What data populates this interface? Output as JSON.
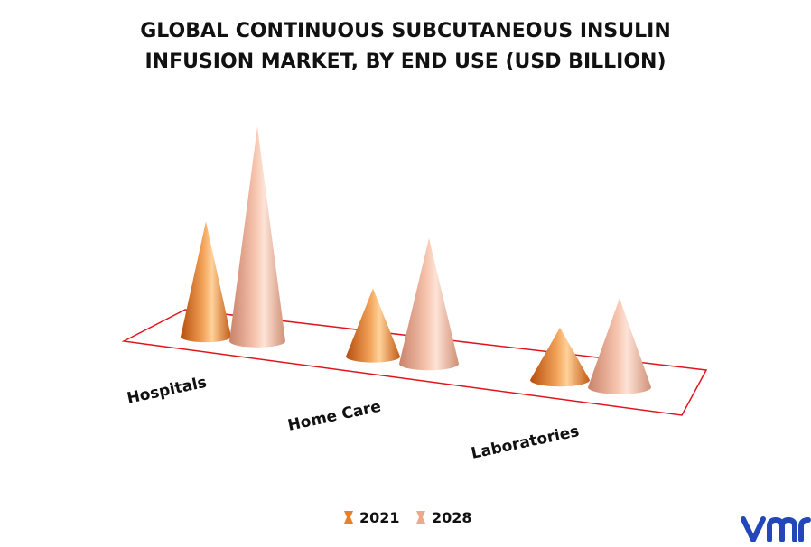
{
  "chart_data": {
    "type": "bar",
    "title_line1": "GLOBAL CONTINUOUS SUBCUTANEOUS INSULIN",
    "title_line2": "INFUSION MARKET, BY END USE (USD BILLION)",
    "categories": [
      "Hospitals",
      "Home Care",
      "Laboratories"
    ],
    "series": [
      {
        "name": "2021",
        "values": [
          2.2,
          1.3,
          1.0
        ],
        "color": "#e8802a"
      },
      {
        "name": "2028",
        "values": [
          4.1,
          2.4,
          1.7
        ],
        "color": "#f0a88a"
      }
    ],
    "legend": "bottom-center",
    "grid": false,
    "shape": "cone"
  },
  "logo": {
    "text": "vmr",
    "color": "#2346b8"
  }
}
